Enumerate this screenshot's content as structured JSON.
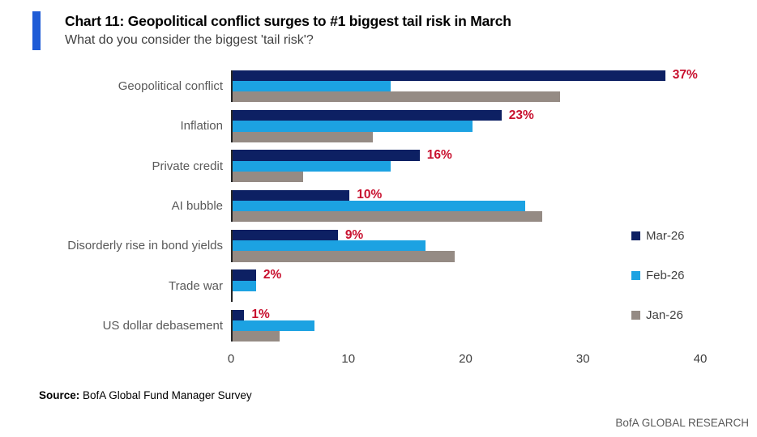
{
  "header": {
    "title": "Chart 11: Geopolitical conflict surges to #1 biggest tail risk in March",
    "subtitle": "What do you consider the biggest 'tail risk'?"
  },
  "colors": {
    "accent_blue": "#1e5bd6",
    "series_mar": "#0d2063",
    "series_feb": "#1ca2e2",
    "series_jan": "#958b84",
    "value_label_red": "#c8102e",
    "axis_line": "#262626",
    "category_text": "#595959"
  },
  "chart_data": {
    "type": "bar",
    "orientation": "horizontal",
    "title": "Chart 11: Geopolitical conflict surges to #1 biggest tail risk in March",
    "subtitle": "What do you consider the biggest 'tail risk'?",
    "categories": [
      "Geopolitical conflict",
      "Inflation",
      "Private credit",
      "AI bubble",
      "Disorderly rise in bond yields",
      "Trade war",
      "US dollar debasement"
    ],
    "series": [
      {
        "name": "Mar-26",
        "color": "#0d2063",
        "values": [
          37,
          23,
          16,
          10,
          9,
          2,
          1
        ]
      },
      {
        "name": "Feb-26",
        "color": "#1ca2e2",
        "values": [
          13.5,
          20.5,
          13.5,
          25,
          16.5,
          2,
          7
        ]
      },
      {
        "name": "Jan-26",
        "color": "#958b84",
        "values": [
          28,
          12,
          6,
          26.5,
          19,
          0,
          4
        ]
      }
    ],
    "data_labels": [
      "37%",
      "23%",
      "16%",
      "10%",
      "9%",
      "2%",
      "1%"
    ],
    "data_labels_on_series": "Mar-26",
    "xlabel": "",
    "ylabel": "",
    "xlim": [
      0,
      40
    ],
    "xticks": [
      "0",
      "10",
      "20",
      "30",
      "40"
    ],
    "grid": false,
    "legend_position": "right"
  },
  "footer": {
    "source_label": "Source:",
    "source_text": " BofA Global Fund Manager Survey",
    "brand": "BofA GLOBAL RESEARCH"
  }
}
